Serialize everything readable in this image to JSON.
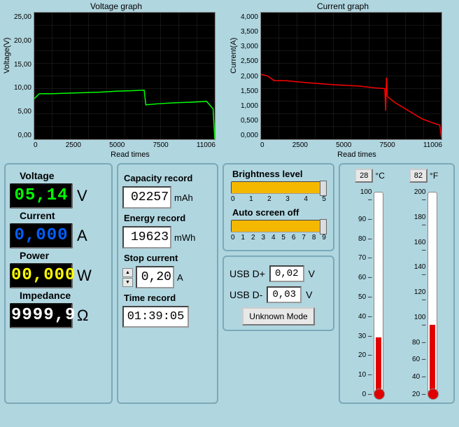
{
  "voltage_chart": {
    "title": "Voltage graph",
    "ylabel": "Voltage(V)",
    "xlabel": "Read times",
    "ylim": [
      0,
      25
    ],
    "yticks": [
      "25,00",
      "20,00",
      "15,00",
      "10,00",
      "5,00",
      "0,00"
    ],
    "xlim": [
      0,
      11006
    ],
    "xticks": [
      "0",
      "2500",
      "5000",
      "7500",
      "11006"
    ],
    "line_color": "#00ff00",
    "grid_color": "#2a2a2a",
    "background_color": "#000000",
    "series": [
      {
        "x": 0,
        "y": 8.0
      },
      {
        "x": 300,
        "y": 9.0
      },
      {
        "x": 1000,
        "y": 9.0
      },
      {
        "x": 2000,
        "y": 9.1
      },
      {
        "x": 3000,
        "y": 9.2
      },
      {
        "x": 4000,
        "y": 9.3
      },
      {
        "x": 5000,
        "y": 9.5
      },
      {
        "x": 6000,
        "y": 9.6
      },
      {
        "x": 6700,
        "y": 9.7
      },
      {
        "x": 6800,
        "y": 6.8
      },
      {
        "x": 7500,
        "y": 7.0
      },
      {
        "x": 8500,
        "y": 7.2
      },
      {
        "x": 9500,
        "y": 7.3
      },
      {
        "x": 10500,
        "y": 7.5
      },
      {
        "x": 10900,
        "y": 6.0
      },
      {
        "x": 11006,
        "y": 0
      }
    ]
  },
  "current_chart": {
    "title": "Current graph",
    "ylabel": "Current(A)",
    "xlabel": "Read times",
    "ylim": [
      0,
      4
    ],
    "yticks": [
      "4,000",
      "3,500",
      "3,000",
      "2,500",
      "2,000",
      "1,500",
      "1,000",
      "0,500",
      "0,000"
    ],
    "xlim": [
      0,
      11006
    ],
    "xticks": [
      "0",
      "2500",
      "5000",
      "7500",
      "11006"
    ],
    "line_color": "#ff0000",
    "grid_color": "#2a2a2a",
    "background_color": "#000000",
    "series": [
      {
        "x": 0,
        "y": 2.05
      },
      {
        "x": 400,
        "y": 2.0
      },
      {
        "x": 800,
        "y": 1.85
      },
      {
        "x": 1500,
        "y": 1.85
      },
      {
        "x": 3000,
        "y": 1.78
      },
      {
        "x": 4500,
        "y": 1.72
      },
      {
        "x": 6000,
        "y": 1.68
      },
      {
        "x": 7000,
        "y": 1.62
      },
      {
        "x": 7550,
        "y": 1.6
      },
      {
        "x": 7600,
        "y": 0.9
      },
      {
        "x": 7650,
        "y": 1.95
      },
      {
        "x": 7700,
        "y": 1.35
      },
      {
        "x": 8200,
        "y": 1.15
      },
      {
        "x": 9000,
        "y": 0.9
      },
      {
        "x": 9800,
        "y": 0.65
      },
      {
        "x": 10300,
        "y": 0.55
      },
      {
        "x": 10700,
        "y": 0.48
      },
      {
        "x": 10900,
        "y": 0.45
      },
      {
        "x": 11006,
        "y": 0.05
      }
    ]
  },
  "readouts": {
    "voltage": {
      "label": "Voltage",
      "value": "05,14",
      "unit": "V",
      "color": "#00ff00"
    },
    "current": {
      "label": "Current",
      "value": "0,000",
      "unit": "A",
      "color": "#0060ff"
    },
    "power": {
      "label": "Power",
      "value": "00,000",
      "unit": "W",
      "color": "#ffff00"
    },
    "impedance": {
      "label": "Impedance",
      "value": "9999,9",
      "unit": "Ω",
      "color": "#ffffff"
    }
  },
  "records": {
    "capacity": {
      "label": "Capacity record",
      "value": "02257",
      "unit": "mAh"
    },
    "energy": {
      "label": "Energy record",
      "value": "19623",
      "unit": "mWh"
    },
    "stop": {
      "label": "Stop current",
      "value": "0,20",
      "unit": "A"
    },
    "time": {
      "label": "Time record",
      "value": "01:39:05"
    }
  },
  "brightness": {
    "label": "Brightness level",
    "value": 5,
    "min": 0,
    "max": 5,
    "ticks": [
      "0",
      "1",
      "2",
      "3",
      "4",
      "5"
    ],
    "fill_color": "#f5b800"
  },
  "autoscreen": {
    "label": "Auto screen off",
    "value": 9,
    "min": 0,
    "max": 9,
    "ticks": [
      "0",
      "1",
      "2",
      "3",
      "4",
      "5",
      "6",
      "7",
      "8",
      "9"
    ],
    "fill_color": "#f5b800"
  },
  "usb": {
    "dplus": {
      "label": "USB D+",
      "value": "0,02",
      "unit": "V"
    },
    "dminus": {
      "label": "USB D-",
      "value": "0,03",
      "unit": "V"
    },
    "mode": "Unknown Mode"
  },
  "tempC": {
    "value": "28",
    "unit": "°C",
    "min": 0,
    "max": 100,
    "step": 10,
    "fill": 28,
    "ticks": [
      "100",
      "90",
      "80",
      "70",
      "60",
      "50",
      "40",
      "30",
      "20",
      "10",
      "0"
    ]
  },
  "tempF": {
    "value": "82",
    "unit": "°F",
    "min": 20,
    "max": 200,
    "step": 20,
    "fill": 82,
    "ticks": [
      "200",
      "180",
      "160",
      "140",
      "120",
      "100",
      "80",
      "60",
      "40",
      "20"
    ]
  }
}
